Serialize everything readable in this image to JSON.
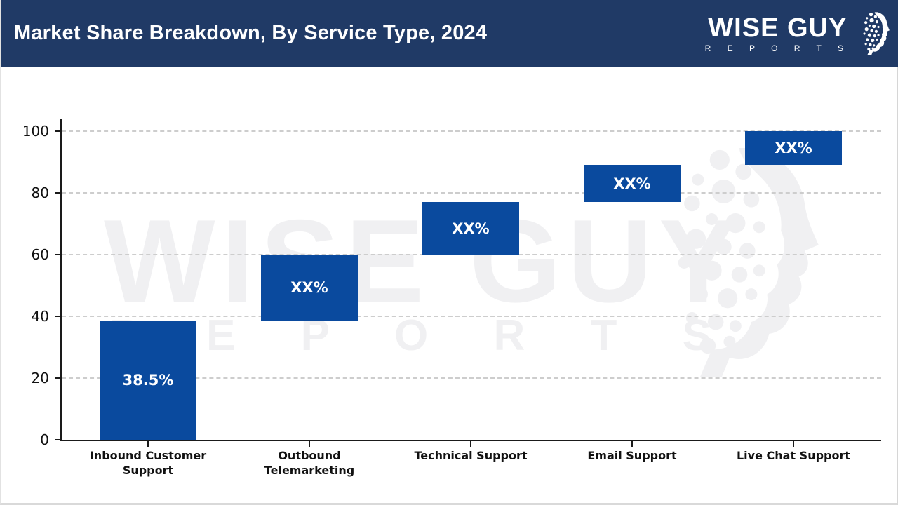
{
  "header": {
    "title": "Market Share Breakdown, By Service Type, 2024",
    "logo": {
      "name": "WISE GUY",
      "sub": "R E P O R T S"
    }
  },
  "watermark": {
    "name": "WISE GUY",
    "sub": "R E P O R T S"
  },
  "colors": {
    "header_bg": "#203a66",
    "bar": "#0a4a9e",
    "axis": "#1a1a1a",
    "gridline": "#cdcdcd",
    "bar_label": "#ffffff",
    "watermark": "#f0f0f2"
  },
  "chart_data": {
    "type": "bar",
    "subtype": "waterfall",
    "title": "Market Share Breakdown, By Service Type, 2024",
    "xlabel": "",
    "ylabel": "",
    "ylim": [
      0,
      100
    ],
    "yticks": [
      0,
      20,
      40,
      60,
      80,
      100
    ],
    "grid": "dashed-horizontal",
    "legend": "none",
    "categories": [
      "Inbound Customer\nSupport",
      "Outbound\nTelemarketing",
      "Technical Support",
      "Email Support",
      "Live Chat Support"
    ],
    "series": [
      {
        "name": "Market share (%)",
        "segments": [
          {
            "start": 0,
            "end": 38.5,
            "label": "38.5%"
          },
          {
            "start": 38.5,
            "end": 60,
            "label": "XX%"
          },
          {
            "start": 60,
            "end": 77,
            "label": "XX%"
          },
          {
            "start": 77,
            "end": 89,
            "label": "XX%"
          },
          {
            "start": 89,
            "end": 100,
            "label": "XX%"
          }
        ]
      }
    ]
  }
}
